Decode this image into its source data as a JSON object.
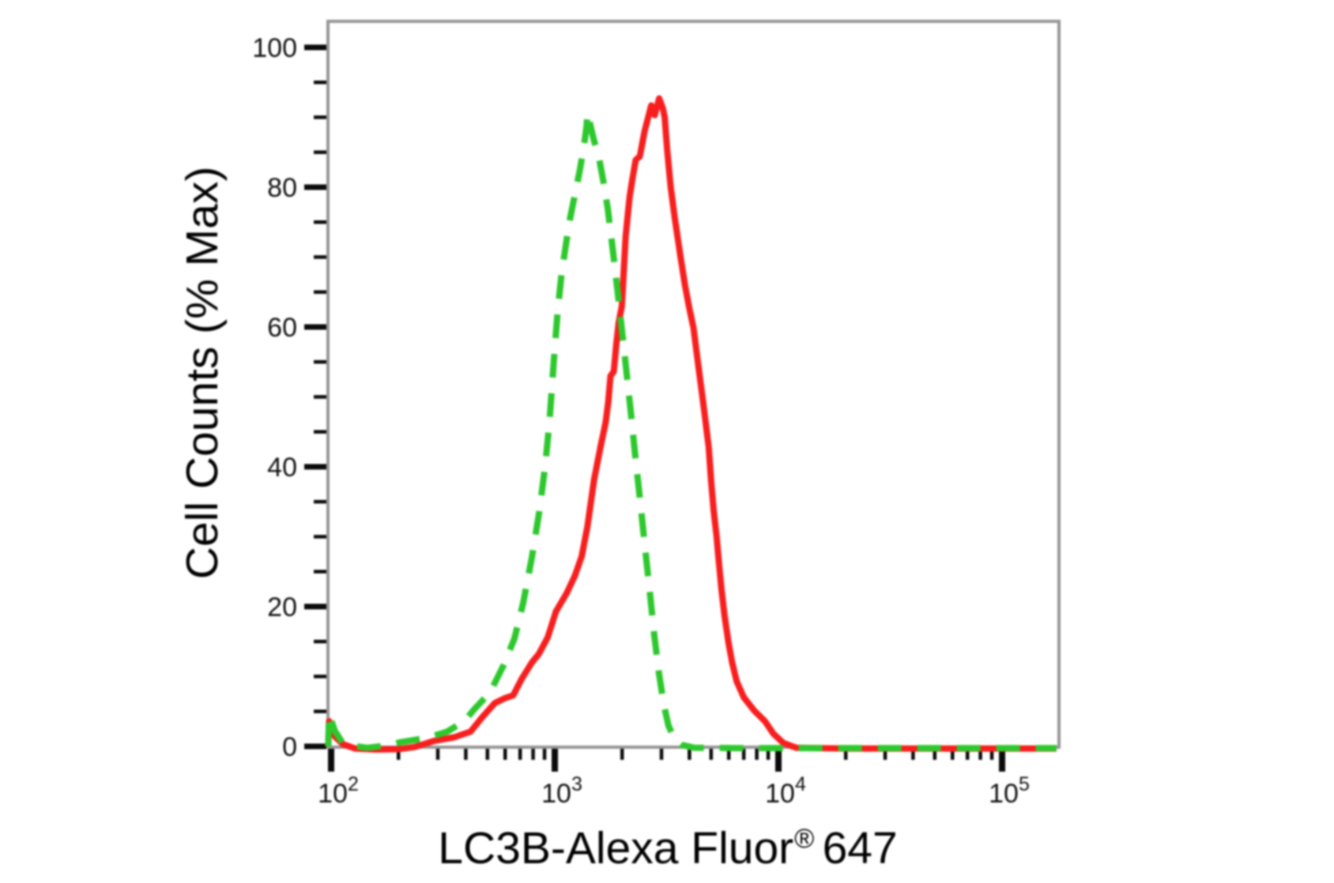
{
  "figure": {
    "background": "#ffffff"
  },
  "chart_data": {
    "type": "line",
    "chart_kind": "flow-cytometry-histogram-overlay",
    "title": "",
    "xlabel": "LC3B-Alexa Fluor® 647",
    "xlabel_parts": {
      "main": "LC3B-Alexa Fluor",
      "sup": "®",
      "tail": "647"
    },
    "ylabel": "Cell Counts (% Max)",
    "x_scale": "log",
    "x_range": [
      97,
      178000
    ],
    "y_range": [
      0,
      104
    ],
    "grid": false,
    "legend": false,
    "frame_color": "#969696",
    "tick_color": "#0a0a0a",
    "text_color": "#111111",
    "x_ticks": [
      {
        "base": "10",
        "exp": "2",
        "value": 100
      },
      {
        "base": "10",
        "exp": "3",
        "value": 1000
      },
      {
        "base": "10",
        "exp": "4",
        "value": 10000
      },
      {
        "base": "10",
        "exp": "5",
        "value": 100000
      }
    ],
    "x_minor_ticks": [
      200,
      300,
      400,
      500,
      600,
      700,
      800,
      900,
      2000,
      3000,
      4000,
      5000,
      6000,
      7000,
      8000,
      9000,
      20000,
      30000,
      40000,
      50000,
      60000,
      70000,
      80000,
      90000
    ],
    "y_ticks": [
      {
        "label": "0",
        "value": 0
      },
      {
        "label": "20",
        "value": 20
      },
      {
        "label": "40",
        "value": 40
      },
      {
        "label": "60",
        "value": 60
      },
      {
        "label": "80",
        "value": 80
      },
      {
        "label": "100",
        "value": 100
      }
    ],
    "y_minor_ticks": [
      5,
      10,
      15,
      25,
      30,
      35,
      45,
      50,
      55,
      65,
      70,
      75,
      85,
      90,
      95
    ],
    "series": [
      {
        "name": "red-solid-curve",
        "color": "#f81e1e",
        "line_style": "solid",
        "stroke_width": 8,
        "peak": {
          "x": 2930,
          "y": 92.7
        },
        "points": [
          [
            97,
            0
          ],
          [
            98,
            3.6
          ],
          [
            104,
            1.4
          ],
          [
            113,
            0.3
          ],
          [
            128,
            -0.3
          ],
          [
            160,
            -0.45
          ],
          [
            200,
            -0.4
          ],
          [
            235,
            -0.1
          ],
          [
            290,
            0.8
          ],
          [
            355,
            1.3
          ],
          [
            420,
            2.1
          ],
          [
            475,
            4.2
          ],
          [
            540,
            6.2
          ],
          [
            600,
            6.9
          ],
          [
            652,
            7.3
          ],
          [
            710,
            9.6
          ],
          [
            790,
            12.0
          ],
          [
            848,
            13.2
          ],
          [
            930,
            15.6
          ],
          [
            1012,
            19.3
          ],
          [
            1130,
            21.9
          ],
          [
            1230,
            24.4
          ],
          [
            1320,
            27.2
          ],
          [
            1400,
            31.5
          ],
          [
            1500,
            38.2
          ],
          [
            1600,
            42.8
          ],
          [
            1688,
            46.3
          ],
          [
            1735,
            49.3
          ],
          [
            1775,
            53.0
          ],
          [
            1835,
            53.6
          ],
          [
            1880,
            57.2
          ],
          [
            1930,
            60.6
          ],
          [
            1995,
            63.0
          ],
          [
            2075,
            73.0
          ],
          [
            2160,
            78.6
          ],
          [
            2220,
            81.0
          ],
          [
            2300,
            83.9
          ],
          [
            2400,
            84.4
          ],
          [
            2520,
            88.0
          ],
          [
            2700,
            91.7
          ],
          [
            2800,
            90.3
          ],
          [
            2930,
            92.7
          ],
          [
            3040,
            91.3
          ],
          [
            3100,
            90.0
          ],
          [
            3180,
            85.4
          ],
          [
            3300,
            80.0
          ],
          [
            3440,
            75.6
          ],
          [
            3630,
            70.5
          ],
          [
            3820,
            66.0
          ],
          [
            4000,
            62.6
          ],
          [
            4170,
            59.9
          ],
          [
            4380,
            54.6
          ],
          [
            4620,
            48.9
          ],
          [
            4880,
            42.8
          ],
          [
            5010,
            37.6
          ],
          [
            5130,
            33.8
          ],
          [
            5290,
            30.1
          ],
          [
            5420,
            26.3
          ],
          [
            5560,
            22.5
          ],
          [
            5740,
            18.7
          ],
          [
            5970,
            15.0
          ],
          [
            6210,
            12.0
          ],
          [
            6510,
            9.3
          ],
          [
            7000,
            7.0
          ],
          [
            7800,
            5.1
          ],
          [
            8700,
            3.6
          ],
          [
            9500,
            1.8
          ],
          [
            10500,
            0.5
          ],
          [
            12000,
            -0.2
          ],
          [
            20000,
            -0.3
          ],
          [
            60000,
            -0.3
          ],
          [
            175000,
            -0.3
          ]
        ]
      },
      {
        "name": "green-dashed-curve",
        "color": "#2dc82d",
        "line_style": "dashed",
        "dash": [
          30,
          20
        ],
        "stroke_width": 8,
        "peak": {
          "x": 1400,
          "y": 90.6
        },
        "points": [
          [
            97,
            0
          ],
          [
            98,
            4.6
          ],
          [
            104,
            2.2
          ],
          [
            112,
            0.6
          ],
          [
            124,
            0.1
          ],
          [
            145,
            -0.2
          ],
          [
            175,
            0.1
          ],
          [
            205,
            0.6
          ],
          [
            268,
            1.2
          ],
          [
            330,
            2.1
          ],
          [
            395,
            3.6
          ],
          [
            436,
            5.3
          ],
          [
            513,
            7.7
          ],
          [
            590,
            11.6
          ],
          [
            660,
            15.4
          ],
          [
            722,
            20.5
          ],
          [
            790,
            27
          ],
          [
            852,
            33.5
          ],
          [
            905,
            40
          ],
          [
            945,
            46
          ],
          [
            972,
            51.5
          ],
          [
            1000,
            57
          ],
          [
            1032,
            62.5
          ],
          [
            1072,
            67.5
          ],
          [
            1122,
            71.8
          ],
          [
            1172,
            75.6
          ],
          [
            1228,
            78.8
          ],
          [
            1292,
            82.3
          ],
          [
            1352,
            86
          ],
          [
            1388,
            88.8
          ],
          [
            1400,
            90.6
          ],
          [
            1432,
            89.3
          ],
          [
            1500,
            86.6
          ],
          [
            1565,
            84.8
          ],
          [
            1645,
            81
          ],
          [
            1725,
            77
          ],
          [
            1802,
            72
          ],
          [
            1872,
            67.5
          ],
          [
            1942,
            63
          ],
          [
            2022,
            58
          ],
          [
            2102,
            53
          ],
          [
            2192,
            47.5
          ],
          [
            2292,
            41.5
          ],
          [
            2402,
            35.5
          ],
          [
            2522,
            29
          ],
          [
            2652,
            22.5
          ],
          [
            2782,
            16
          ],
          [
            2922,
            10.5
          ],
          [
            3072,
            6
          ],
          [
            3222,
            3
          ],
          [
            3432,
            1
          ],
          [
            3700,
            0.2
          ],
          [
            4200,
            -0.2
          ],
          [
            6500,
            -0.25
          ],
          [
            12000,
            -0.25
          ],
          [
            30000,
            -0.25
          ],
          [
            70000,
            -0.25
          ],
          [
            175000,
            -0.25
          ]
        ]
      }
    ]
  }
}
